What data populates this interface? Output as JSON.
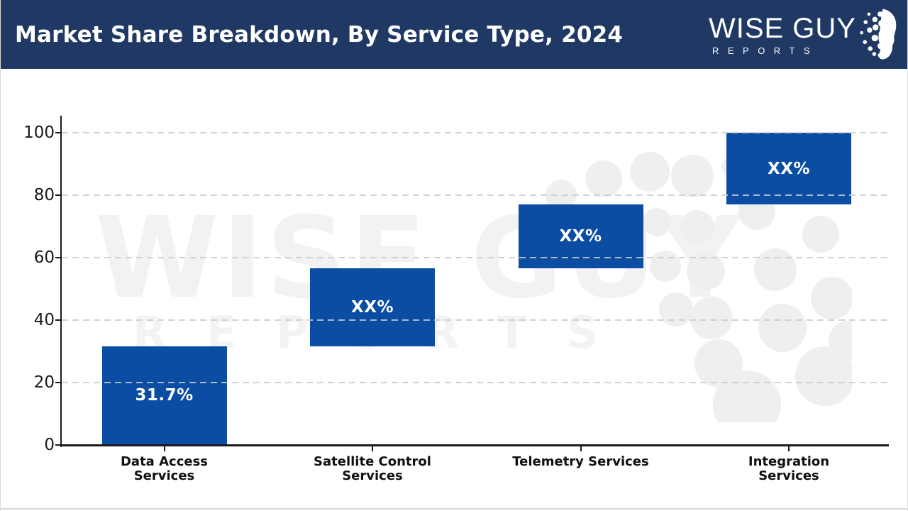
{
  "header": {
    "title": "Market Share Breakdown, By Service Type, 2024",
    "logo": {
      "line1": "WISE GUY",
      "line2": "REPORTS"
    }
  },
  "watermark": {
    "line1": "WISE GUY",
    "line2": "REPORTS"
  },
  "colors": {
    "header_bg": "#1f3864",
    "title_text": "#ffffff",
    "bar": "#0b4da2",
    "bar_label": "#ffffff",
    "axis": "#1a1a1a",
    "grid": "#cbcbcb",
    "watermark": "#f2f2f2",
    "footer_line": "#d6d6d6"
  },
  "chart_data": {
    "type": "bar",
    "subtype": "waterfall",
    "title": "Market Share Breakdown, By Service Type, 2024",
    "categories": [
      [
        "Data Access",
        "Services"
      ],
      [
        "Satellite Control",
        "Services"
      ],
      [
        "Telemetry Services"
      ],
      [
        "Integration",
        "Services"
      ]
    ],
    "segments": [
      {
        "category": "Data Access Services",
        "start": 0,
        "end": 31.7,
        "label": "31.7%"
      },
      {
        "category": "Satellite Control Services",
        "start": 31.7,
        "end": 56.6,
        "label": "XX%"
      },
      {
        "category": "Telemetry Services",
        "start": 56.7,
        "end": 77.0,
        "label": "XX%"
      },
      {
        "category": "Integration Services",
        "start": 77.0,
        "end": 100.0,
        "label": "XX%"
      }
    ],
    "ylim": [
      0,
      100
    ],
    "yticks": [
      0,
      20,
      40,
      60,
      80,
      100
    ],
    "xlabel": "",
    "ylabel": "",
    "grid": true,
    "grid_style": "dashed",
    "legend": false
  }
}
